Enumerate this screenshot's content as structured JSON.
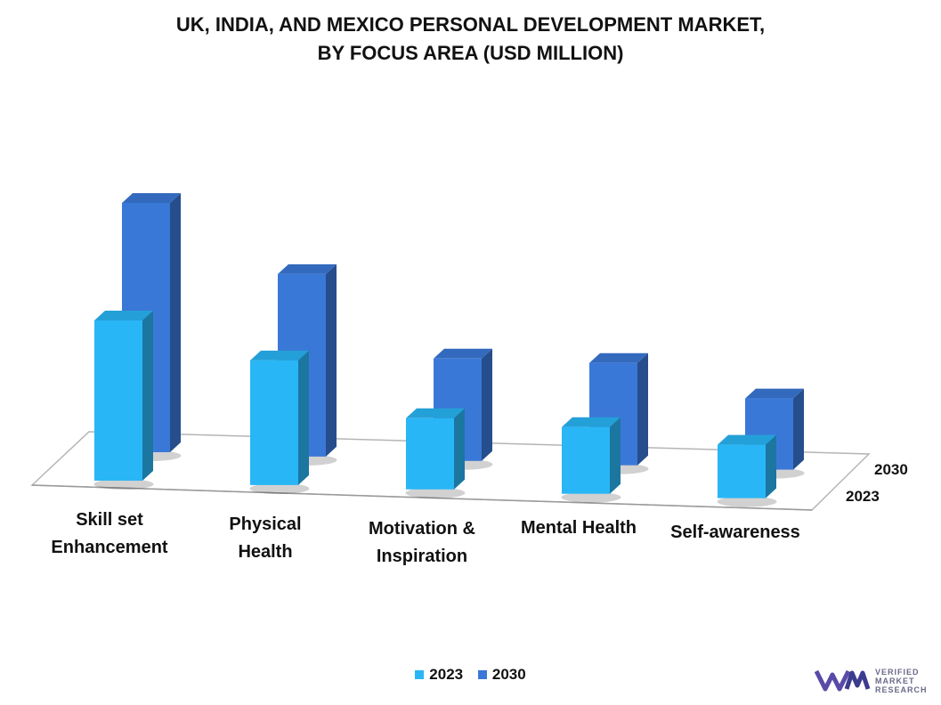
{
  "title_line1": "UK, INDIA, AND MEXICO PERSONAL DEVELOPMENT MARKET,",
  "title_line2": "BY FOCUS AREA (USD MILLION)",
  "logo": {
    "line1": "VERIFIED",
    "line2": "MARKET",
    "line3": "RESEARCH"
  },
  "chart_data": {
    "type": "bar",
    "style": "3d-clustered-depth",
    "categories": [
      "Skill set Enhancement",
      "Physical Health",
      "Motivation & Inspiration",
      "Mental Health",
      "Self-awareness"
    ],
    "category_lines": [
      [
        "Skill set",
        "Enhancement"
      ],
      [
        "Physical",
        "Health"
      ],
      [
        "Motivation &",
        "Inspiration"
      ],
      [
        "Mental Health"
      ],
      [
        "Self-awareness"
      ]
    ],
    "series": [
      {
        "name": "2023",
        "values": [
          180,
          140,
          80,
          75,
          60
        ],
        "color": "#29b6f6"
      },
      {
        "name": "2030",
        "values": [
          280,
          205,
          115,
          115,
          80
        ],
        "color": "#3a78d8"
      }
    ],
    "depth_labels": [
      "2030",
      "2023"
    ],
    "grid": false,
    "legend_position": "bottom"
  }
}
